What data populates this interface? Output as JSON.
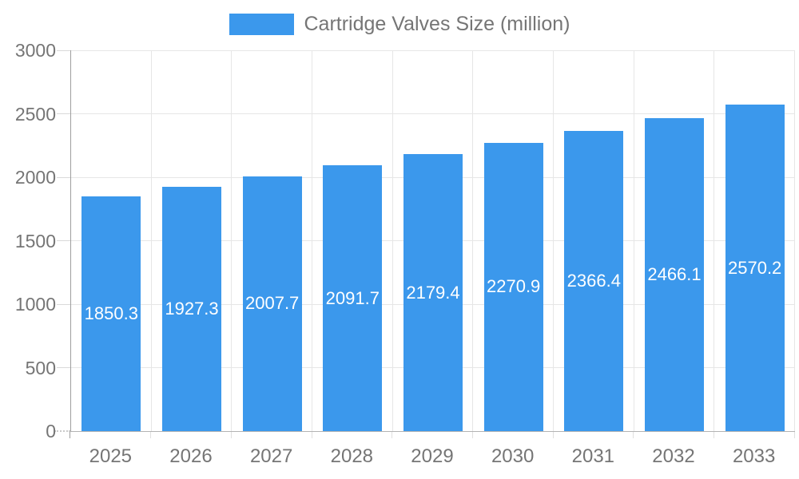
{
  "chart_data": {
    "type": "bar",
    "title": "Cartridge Valves Size (million)",
    "legend": {
      "position": "top-center",
      "label": "Cartridge Valves Size (million)"
    },
    "categories": [
      "2025",
      "2026",
      "2027",
      "2028",
      "2029",
      "2030",
      "2031",
      "2032",
      "2033"
    ],
    "values": [
      1850.3,
      1927.3,
      2007.7,
      2091.7,
      2179.4,
      2270.9,
      2366.4,
      2466.1,
      2570.2
    ],
    "data_labels": [
      "1850.3",
      "1927.3",
      "2007.7",
      "2091.7",
      "2179.4",
      "2270.9",
      "2366.4",
      "2466.1",
      "2570.2"
    ],
    "xlabel": "",
    "ylabel": "",
    "ylim": [
      0,
      3000
    ],
    "yticks": [
      0,
      500,
      1000,
      1500,
      2000,
      2500,
      3000
    ],
    "grid": true,
    "data_label_position": "inside-center",
    "colors": {
      "bar": "#3b98ec",
      "grid": "#e6e6e6",
      "y_axis_line": "#9e9e9e",
      "baseline": "#b3b3b3",
      "tick": "#d9d9d9",
      "axis_text": "#757575",
      "data_label_text": "#ffffff",
      "background": "#ffffff"
    }
  }
}
